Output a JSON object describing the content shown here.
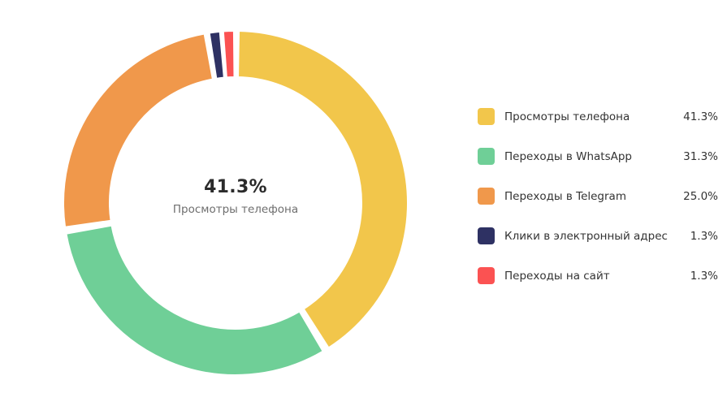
{
  "chart_data": {
    "type": "pie",
    "donut": true,
    "title": "",
    "legend_position": "right",
    "start_angle_deg": 0,
    "direction": "clockwise",
    "center_label": {
      "value": "41.3%",
      "label": "Просмотры телефона"
    },
    "series": [
      {
        "name": "Просмотры телефона",
        "value": 41.3,
        "percent_label": "41.3%",
        "color": "#F2C64B"
      },
      {
        "name": "Переходы в WhatsApp",
        "value": 31.3,
        "percent_label": "31.3%",
        "color": "#6FCF97"
      },
      {
        "name": "Переходы в Telegram",
        "value": 25.0,
        "percent_label": "25.0%",
        "color": "#F0984B"
      },
      {
        "name": "Клики в электронный адрес",
        "value": 1.3,
        "percent_label": "1.3%",
        "color": "#2E3163"
      },
      {
        "name": "Переходы на сайт",
        "value": 1.3,
        "percent_label": "1.3%",
        "color": "#FB5252"
      }
    ]
  }
}
